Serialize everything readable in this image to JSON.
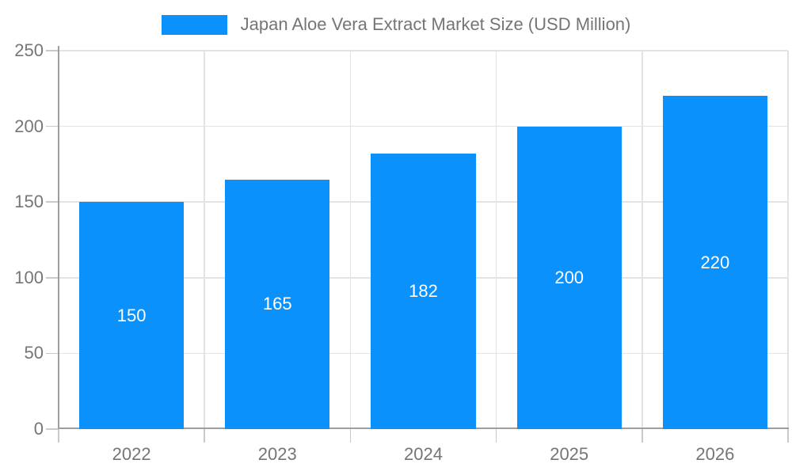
{
  "colors": {
    "background": "#ffffff",
    "bar": "#0a91fb",
    "bar_label_text": "#ffffff",
    "gridline": "#e3e3e3",
    "axis_line": "#9e9e9e",
    "tick": "#c9c9c9",
    "text": "#757575"
  },
  "legend": {
    "label": "Japan Aloe Vera Extract Market Size (USD Million)"
  },
  "chart_data": {
    "type": "bar",
    "title": "Japan Aloe Vera Extract Market Size (USD Million)",
    "categories": [
      "2022",
      "2023",
      "2024",
      "2025",
      "2026"
    ],
    "values": [
      150,
      165,
      182,
      200,
      220
    ],
    "xlabel": "",
    "ylabel": "",
    "ylim": [
      0,
      250
    ],
    "yticks": [
      0,
      50,
      100,
      150,
      200,
      250
    ],
    "grid": true,
    "legend_position": "top",
    "bar_width_fraction": 0.717,
    "value_labels": "inside-center"
  }
}
